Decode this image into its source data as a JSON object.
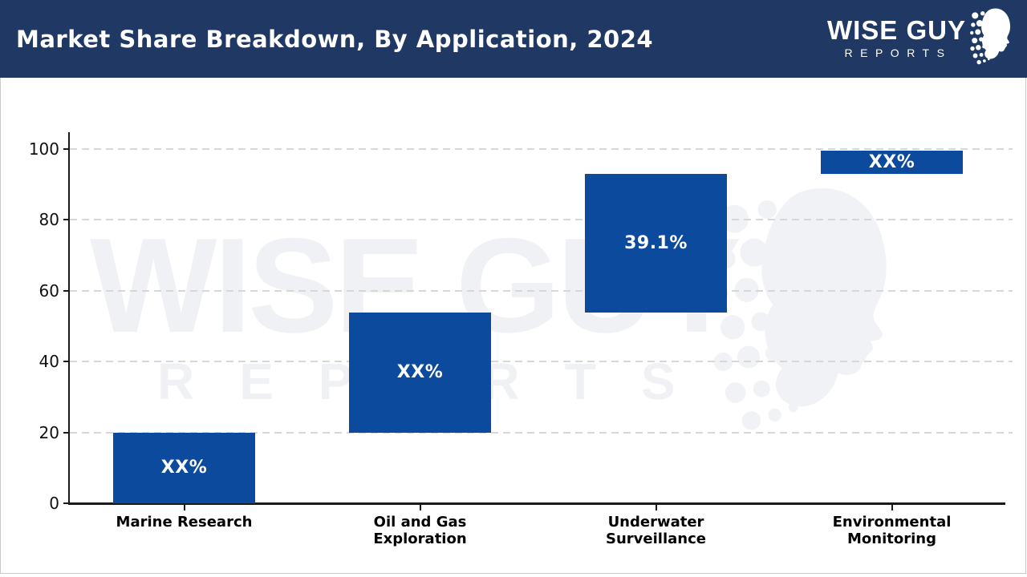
{
  "header": {
    "title": "Market Share Breakdown, By Application, 2024",
    "logo": {
      "line1": "WISE GUY",
      "line2": "REPORTS"
    }
  },
  "watermark": {
    "line1": "WISE GUY",
    "line2": "REPORTS"
  },
  "chart_data": {
    "type": "bar",
    "variant": "waterfall",
    "title": "Market Share Breakdown, By Application, 2024",
    "xlabel": "",
    "ylabel": "",
    "categories": [
      "Marine Research",
      "Oil and Gas\nExploration",
      "Underwater\nSurveillance",
      "Environmental\nMonitoring"
    ],
    "bars": [
      {
        "category": "Marine Research",
        "label": "XX%",
        "start": 0,
        "end": 20
      },
      {
        "category": "Oil and Gas Exploration",
        "label": "XX%",
        "start": 20,
        "end": 53.8
      },
      {
        "category": "Underwater Surveillance",
        "label": "39.1%",
        "start": 53.8,
        "end": 92.9
      },
      {
        "category": "Environmental Monitoring",
        "label": "XX%",
        "start": 92.9,
        "end": 99.5
      }
    ],
    "ylim": [
      0,
      100
    ],
    "yticks": [
      0,
      20,
      40,
      60,
      80,
      100
    ],
    "grid": "horizontal-dashed",
    "legend": "none",
    "colors": {
      "bar": "#0c4a9e",
      "bar_label": "#ffffff",
      "grid": "#d7d7d7",
      "axis": "#1a1a1a",
      "header": "#1f3864",
      "watermark": "#f0f1f4"
    }
  }
}
